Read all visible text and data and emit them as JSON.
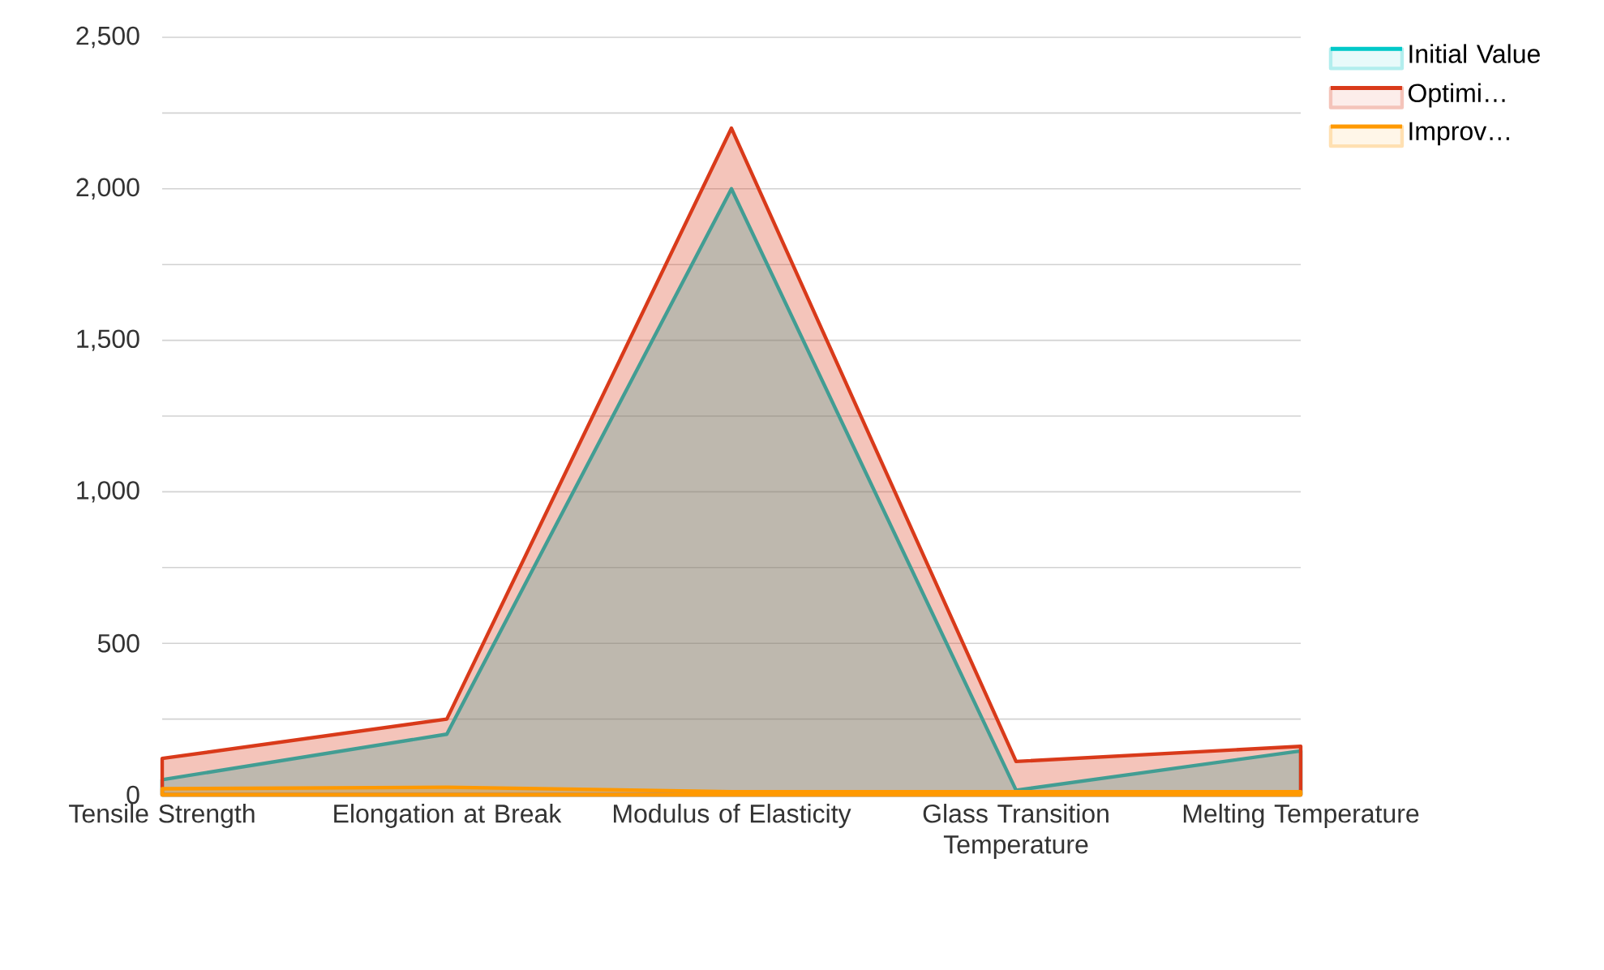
{
  "chart_data": {
    "type": "area",
    "categories": [
      "Tensile Strength",
      "Elongation at Break",
      "Modulus of Elasticity",
      "Glass Transition Temperature",
      "Melting Temperature"
    ],
    "series": [
      {
        "name": "Initial Value",
        "color": "#00c8c8",
        "values": [
          50,
          200,
          2000,
          15,
          145
        ]
      },
      {
        "name": "Optimi…",
        "color": "#d93a1a",
        "values": [
          120,
          250,
          2200,
          110,
          160
        ]
      },
      {
        "name": "Improv…",
        "color": "#ff9900",
        "values": [
          20,
          25,
          10,
          10,
          10
        ]
      }
    ],
    "ylim": [
      0,
      2500
    ],
    "yticks": [
      0,
      {
        "value": 250,
        "label": null
      },
      500,
      {
        "value": 750,
        "label": null
      },
      {
        "value": 1000,
        "label": "1,000"
      },
      {
        "value": 1250,
        "label": null
      },
      {
        "value": 1500,
        "label": "1,500"
      },
      {
        "value": 1750,
        "label": null
      },
      {
        "value": 2000,
        "label": "2,000"
      },
      {
        "value": 2250,
        "label": null
      },
      {
        "value": 2500,
        "label": "2,500"
      }
    ],
    "grid": "y",
    "legend": "top right"
  }
}
